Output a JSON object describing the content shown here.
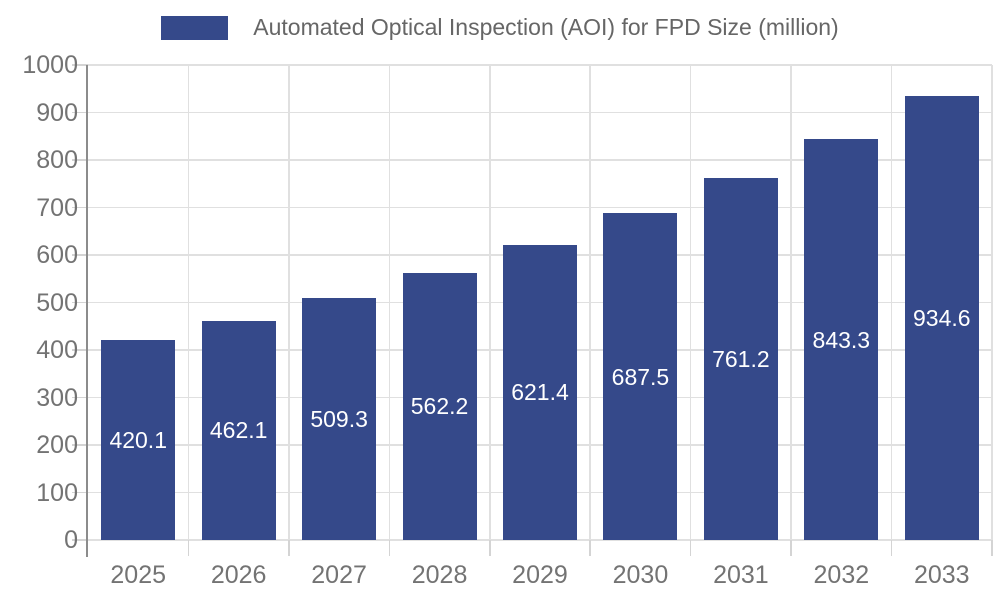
{
  "legend": {
    "label": "Automated Optical Inspection (AOI) for FPD Size (million)"
  },
  "chart_data": {
    "type": "bar",
    "title": "Automated Optical Inspection (AOI) for FPD Size (million)",
    "categories": [
      "2025",
      "2026",
      "2027",
      "2028",
      "2029",
      "2030",
      "2031",
      "2032",
      "2033"
    ],
    "series": [
      {
        "name": "Automated Optical Inspection (AOI) for FPD Size (million)",
        "values": [
          420.1,
          462.1,
          509.3,
          562.2,
          621.4,
          687.5,
          761.2,
          843.3,
          934.6
        ]
      }
    ],
    "value_labels": [
      "420.1",
      "462.1",
      "509.3",
      "562.2",
      "621.4",
      "687.5",
      "761.2",
      "843.3",
      "934.6"
    ],
    "xlabel": "",
    "ylabel": "",
    "ylim": [
      0,
      1000
    ],
    "ytick_interval": 100,
    "ytick_labels": [
      "0",
      "100",
      "200",
      "300",
      "400",
      "500",
      "600",
      "700",
      "800",
      "900",
      "1000"
    ],
    "grid": true,
    "legend_position": "top"
  },
  "colors": {
    "bar": "#35498a",
    "grid": "#e0e0e0",
    "tick": "#d4d4d4",
    "axis": "#8c8c8c",
    "axis_text": "#737373",
    "legend_text": "#666666",
    "value_text": "#ffffff",
    "background": "#ffffff"
  }
}
